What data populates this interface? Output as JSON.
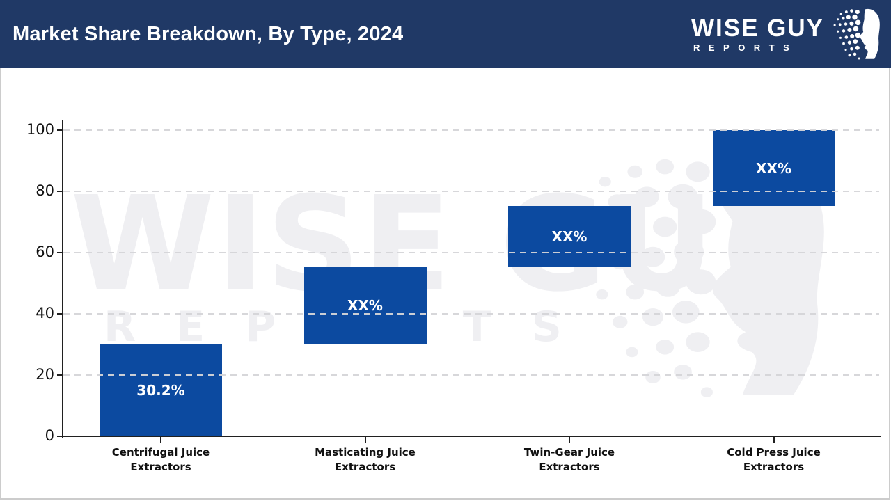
{
  "page": {
    "bg": "#ffffff",
    "frame_border": "#cccccc"
  },
  "header": {
    "bg": "#203966",
    "title": "Market Share Breakdown, By Type, 2024",
    "title_color": "#ffffff",
    "logo": {
      "line1": "WISE GUY",
      "line2": "REPORTS",
      "head_icon": "dotted-face-profile",
      "color": "#ffffff"
    }
  },
  "watermark": {
    "line1": "WISE GUY",
    "line2": "REPORTS",
    "head_icon": "dotted-face-profile",
    "color": "#efeff2"
  },
  "chart_data": {
    "type": "bar",
    "subtype": "waterfall",
    "title": "Market Share Breakdown, By Type, 2024",
    "categories": [
      "Centrifugal Juice Extractors",
      "Masticating Juice Extractors",
      "Twin-Gear Juice Extractors",
      "Cold Press Juice Extractors"
    ],
    "segments": [
      {
        "category": "Centrifugal Juice Extractors",
        "start": 0,
        "end": 30.2,
        "label": "30.2%"
      },
      {
        "category": "Masticating Juice Extractors",
        "start": 30.2,
        "end": 55.2,
        "label": "XX%"
      },
      {
        "category": "Twin-Gear Juice Extractors",
        "start": 55.2,
        "end": 75.2,
        "label": "XX%"
      },
      {
        "category": "Cold Press Juice Extractors",
        "start": 75.2,
        "end": 100,
        "label": "XX%"
      }
    ],
    "xlabel": "",
    "ylabel": "",
    "ylim": [
      0,
      100
    ],
    "yticks": [
      0,
      20,
      40,
      60,
      80,
      100
    ],
    "grid": "horizontal-dashed",
    "legend": "none",
    "bar_color": "#0C4AA0",
    "bar_label_color": "#ffffff",
    "axis_color": "#202020",
    "tick_label_color": "#111111",
    "gridline_color": "#d9d9d9"
  }
}
